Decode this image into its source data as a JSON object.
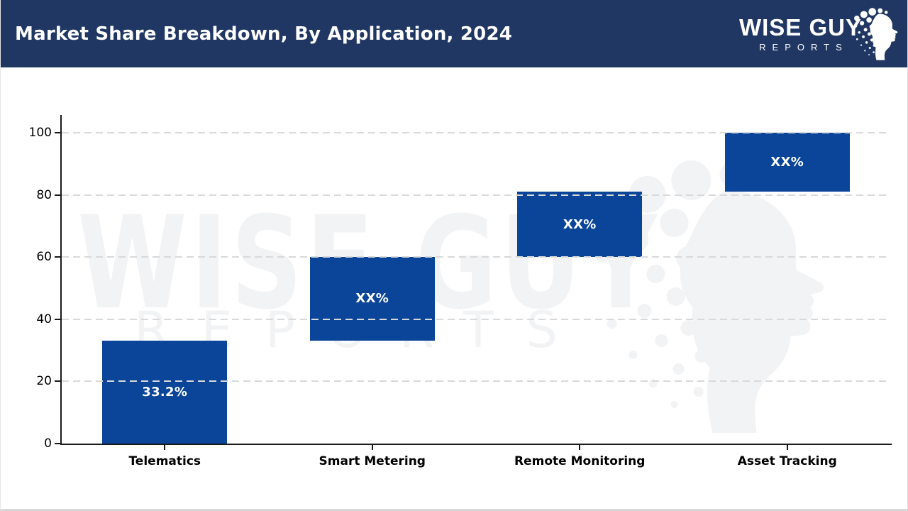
{
  "header": {
    "title": "Market Share Breakdown, By Application, 2024",
    "bg_color": "#203763",
    "logo": {
      "name": "WISE GUY",
      "tagline": "REPORTS"
    }
  },
  "watermark": {
    "name": "WISE GUY",
    "tagline": "REPORTS"
  },
  "chart_data": {
    "type": "bar",
    "subtype": "waterfall",
    "title": "Market Share Breakdown, By Application, 2024",
    "categories": [
      "Telematics",
      "Smart Metering",
      "Remote Monitoring",
      "Asset Tracking"
    ],
    "series": [
      {
        "name": "Market share (%)",
        "starts": [
          0,
          33.2,
          60,
          81
        ],
        "ends": [
          33.2,
          60,
          81,
          100
        ]
      }
    ],
    "bar_labels": [
      "33.2%",
      "XX%",
      "XX%",
      "XX%"
    ],
    "yticks": [
      0,
      20,
      40,
      60,
      80,
      100
    ],
    "ylim": [
      0,
      105
    ],
    "xlabel": "",
    "ylabel": "",
    "grid": "horizontal-dashed",
    "legend": "none",
    "bar_color": "#0a459a",
    "grid_color": "#d9d9d9",
    "axis_color": "#1a1a1a",
    "bar_label_color": "#ffffff"
  }
}
